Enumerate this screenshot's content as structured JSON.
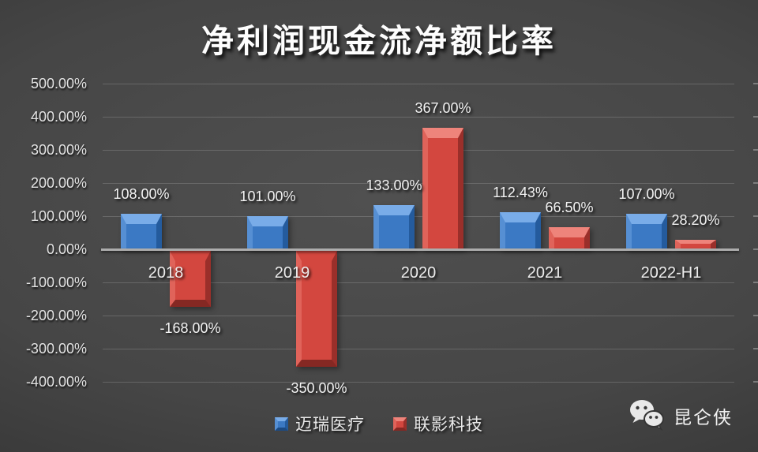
{
  "title": "净利润现金流净额比率",
  "chart_data": {
    "type": "bar",
    "title": "净利润现金流净额比率",
    "categories": [
      "2018",
      "2019",
      "2020",
      "2021",
      "2022-H1"
    ],
    "series": [
      {
        "name": "迈瑞医疗",
        "values": [
          108,
          101,
          133,
          112.43,
          107
        ],
        "labels": [
          "108.00%",
          "101.00%",
          "133.00%",
          "112.43%",
          "107.00%"
        ],
        "color": "#3b79c4",
        "bevel": {
          "face": "#3b79c4",
          "light": "#79ace8",
          "mid": "#568fd3",
          "dark": "#245b9d",
          "darker": "#1c4a82"
        }
      },
      {
        "name": "联影科技",
        "values": [
          -168,
          -350,
          367,
          66.5,
          28.2
        ],
        "labels": [
          "-168.00%",
          "-350.00%",
          "367.00%",
          "66.50%",
          "28.20%"
        ],
        "color": "#d3473f",
        "bevel": {
          "face": "#d3473f",
          "light": "#ee847b",
          "mid": "#e0635a",
          "dark": "#9a2f2a",
          "darker": "#852823"
        }
      }
    ],
    "y_axis": {
      "min": -400,
      "max": 500,
      "step": 100,
      "tick_labels": [
        "500.00%",
        "400.00%",
        "300.00%",
        "200.00%",
        "100.00%",
        "0.00%",
        "-100.00%",
        "-200.00%",
        "-300.00%",
        "-400.00%"
      ]
    },
    "grid": true,
    "legend_position": "bottom"
  },
  "legend": {
    "items": [
      {
        "label": "迈瑞医疗",
        "color": "#3b79c4"
      },
      {
        "label": "联影科技",
        "color": "#d3473f"
      }
    ]
  },
  "watermark": {
    "label": "昆仑侠",
    "icon": "wechat-icon"
  },
  "colors": {
    "background_center": "#505050",
    "background_edge": "#222222",
    "gridline": "rgba(255,255,255,0.17)",
    "zero_axis": "#adadad",
    "text": "#f3f3f3"
  }
}
